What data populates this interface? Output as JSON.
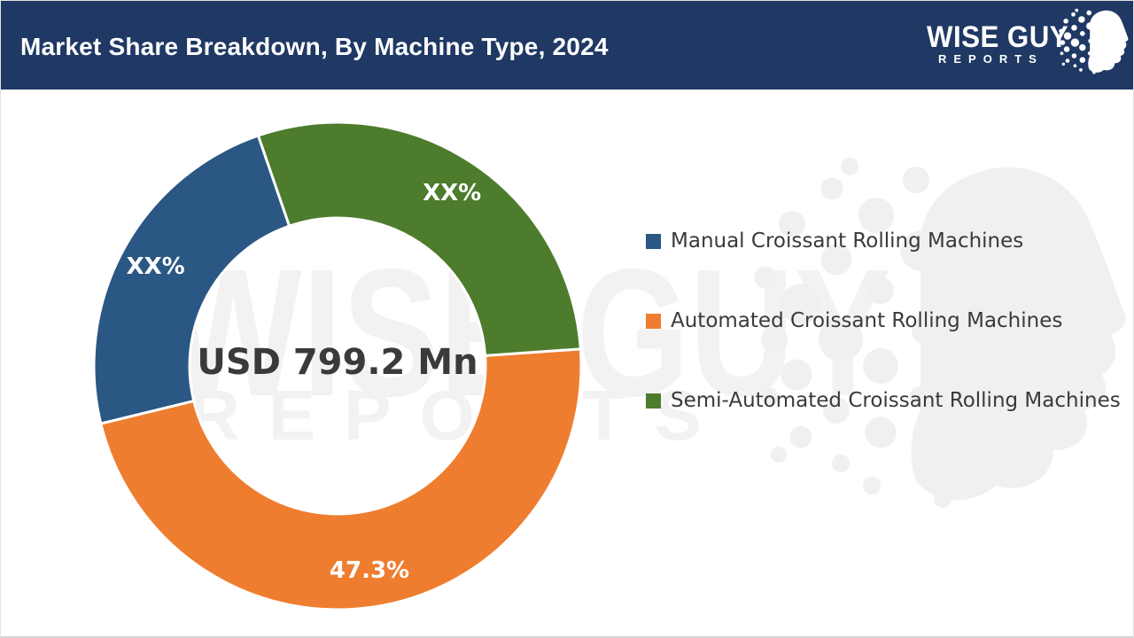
{
  "header": {
    "title": "Market Share Breakdown, By Machine Type, 2024",
    "logo": {
      "line1": "WISE GUY",
      "line2": "REPORTS"
    }
  },
  "watermark": {
    "line1": "WISE GUY",
    "line2": "REPORTS"
  },
  "chart_data": {
    "type": "pie",
    "subtype": "donut",
    "title": "Market Share Breakdown, By Machine Type, 2024",
    "center_label": "USD 799.2 Mn",
    "legend_position": "right",
    "segments": [
      {
        "name": "Manual Croissant Rolling Machines",
        "color": "#2a5783",
        "display_label": "XX%",
        "start_deg": 256.3,
        "span_deg": 84.7
      },
      {
        "name": "Automated Croissant Rolling Machines",
        "color": "#ef7d2f",
        "display_label": "47.3%",
        "start_deg": 86.0,
        "span_deg": 170.3
      },
      {
        "name": "Semi-Automated Croissant Rolling Machines",
        "color": "#4d7c2c",
        "display_label": "XX%",
        "start_deg": -19.0,
        "span_deg": 105.0
      }
    ]
  }
}
